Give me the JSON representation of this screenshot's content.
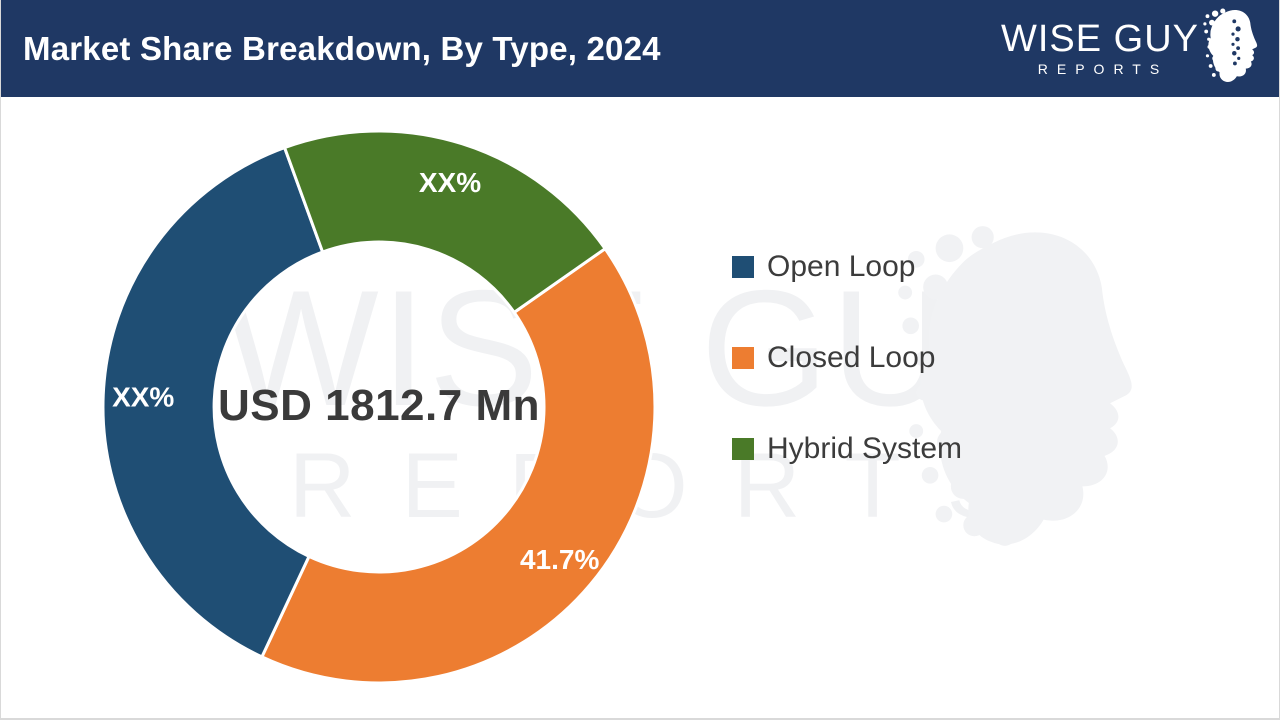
{
  "header": {
    "title": "Market Share Breakdown, By Type, 2024",
    "bg_color": "#1f3864",
    "logo": {
      "line1": "WISE GUY",
      "line2": "REPORTS"
    }
  },
  "watermark": {
    "line1": "WISE GUY",
    "line2": "REPORTS"
  },
  "donut": {
    "center_label": "USD 1812.7 Mn",
    "segments": [
      {
        "name": "Closed Loop",
        "label": "41.7%",
        "color": "#ed7d31",
        "start_deg": 55,
        "end_deg": 205.1
      },
      {
        "name": "Open Loop",
        "label": "XX%",
        "color": "#1f4e74",
        "start_deg": 205.1,
        "end_deg": 340
      },
      {
        "name": "Hybrid System",
        "label": "XX%",
        "color": "#4a7a28",
        "start_deg": 340,
        "end_deg": 415
      }
    ]
  },
  "legend": {
    "items": [
      {
        "label": "Open Loop",
        "color": "#1f4e74"
      },
      {
        "label": "Closed Loop",
        "color": "#ed7d31"
      },
      {
        "label": "Hybrid System",
        "color": "#4a7a28"
      }
    ]
  },
  "chart_data": {
    "type": "pie",
    "subtype": "donut",
    "title": "Market Share Breakdown, By Type, 2024",
    "center_total": "USD 1812.7 Mn",
    "categories": [
      "Open Loop",
      "Closed Loop",
      "Hybrid System"
    ],
    "labels_shown": [
      "XX%",
      "41.7%",
      "XX%"
    ],
    "estimated_values_pct": [
      37.5,
      41.7,
      20.8
    ],
    "colors": [
      "#1f4e74",
      "#ed7d31",
      "#4a7a28"
    ],
    "legend_position": "right",
    "donut_hole": true
  }
}
